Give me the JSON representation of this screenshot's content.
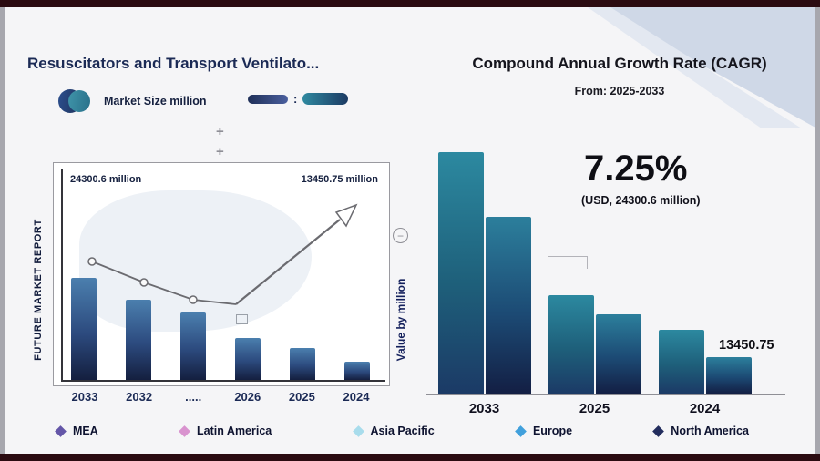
{
  "header": {
    "left_title": "Resuscitators and Transport Ventilato...",
    "market_size_label": "Market Size million",
    "legend_colon": ":"
  },
  "watermark": "FUTURE MARKET REPORT",
  "decor": {
    "plus": "+",
    "minus": "−"
  },
  "region_legend": [
    {
      "label": "MEA",
      "color": "#6456a8"
    },
    {
      "label": "Latin America",
      "color": "#d993cf"
    },
    {
      "label": "Asia Pacific",
      "color": "#a8dcec"
    },
    {
      "label": "Europe",
      "color": "#41a0dc"
    },
    {
      "label": "North America",
      "color": "#232d5e"
    }
  ],
  "chart_data": [
    {
      "type": "bar",
      "title": "Market Size million",
      "categories": [
        "2033",
        "2032",
        ".....",
        "2026",
        "2025",
        "2024"
      ],
      "values": [
        24300.6,
        21500,
        19800,
        16500,
        15200,
        13450.75
      ],
      "annotations": [
        "24300.6 million",
        "13450.75 million"
      ],
      "legend_position": "top-left",
      "grid": false
    },
    {
      "type": "bar",
      "title": "Compound Annual Growth Rate (CAGR)",
      "subtitle": "From: 2025-2033",
      "cagr": "7.25%",
      "basis": "(USD, 24300.6 million)",
      "categories": [
        "2033",
        "2025",
        "2024"
      ],
      "series": [
        {
          "name": "upper",
          "values": [
            24300.6,
            9900,
            6400
          ]
        },
        {
          "name": "lower",
          "values": [
            17800,
            8000,
            3700
          ]
        }
      ],
      "ylabel": "Value by million",
      "annotations": [
        "13450.75"
      ],
      "grid": false
    }
  ]
}
